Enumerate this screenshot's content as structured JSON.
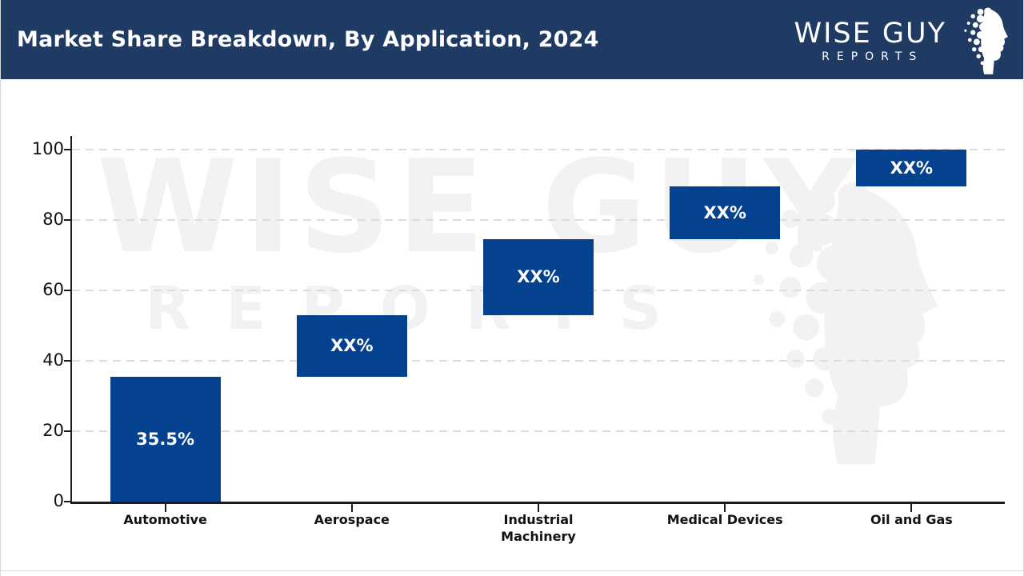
{
  "header": {
    "title": "Market Share Breakdown, By Application, 2024",
    "logo": {
      "line1": "WISE GUY",
      "line2": "REPORTS"
    }
  },
  "watermark": {
    "line1": "WISE GUY",
    "line2": "REPORTS"
  },
  "colors": {
    "header_bg": "#1f3a63",
    "bar": "#04418f",
    "grid": "#dcdcdc",
    "axis": "#1c1c1c",
    "watermark": "#f2f2f4",
    "bar_label_text": "#ffffff",
    "border": "#d9d9d9"
  },
  "chart_data": {
    "type": "bar",
    "subtype": "waterfall",
    "title": "Market Share Breakdown, By Application, 2024",
    "categories": [
      "Automotive",
      "Aerospace",
      "Industrial\nMachinery",
      "Medical Devices",
      "Oil and Gas"
    ],
    "segments": [
      {
        "start": 0,
        "end": 35.5,
        "label": "35.5%"
      },
      {
        "start": 35.5,
        "end": 53,
        "label": "XX%"
      },
      {
        "start": 53,
        "end": 74.5,
        "label": "XX%"
      },
      {
        "start": 74.5,
        "end": 89.5,
        "label": "XX%"
      },
      {
        "start": 89.5,
        "end": 100,
        "label": "XX%"
      }
    ],
    "ylim": [
      0,
      100
    ],
    "yticks": [
      0,
      20,
      40,
      60,
      80,
      100
    ],
    "xlabel": "",
    "ylabel": "",
    "grid": "horizontal-dashed",
    "legend": "none",
    "bar_color": "#04418f"
  }
}
